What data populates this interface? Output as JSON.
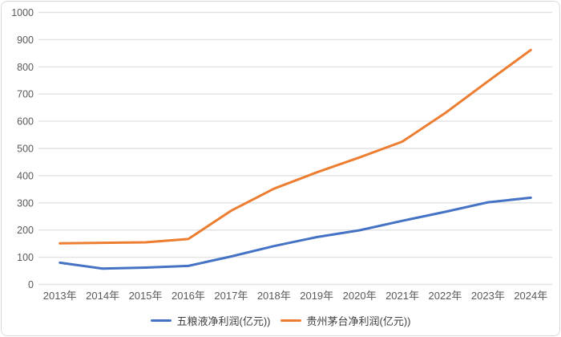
{
  "chart": {
    "frame_border_color": "#d9d9d9",
    "gridline_color": "#e2e2e2",
    "tick_label_color": "#595959",
    "legend_text_color": "#404040",
    "background": "#ffffff"
  },
  "chart_data": {
    "type": "line",
    "title": "",
    "xlabel": "",
    "ylabel": "",
    "categories": [
      "2013年",
      "2014年",
      "2015年",
      "2016年",
      "2017年",
      "2018年",
      "2019年",
      "2020年",
      "2021年",
      "2022年",
      "2023年",
      "2024年"
    ],
    "series": [
      {
        "name": "五粮液净利润(亿元))",
        "color": "#4472c4",
        "values": [
          80,
          58,
          62,
          68,
          103,
          141,
          174,
          199,
          234,
          267,
          302,
          319
        ]
      },
      {
        "name": "贵州茅台净利润(亿元))",
        "color": "#ed7d31",
        "values": [
          151,
          153,
          155,
          167,
          271,
          352,
          412,
          467,
          525,
          630,
          747,
          862
        ]
      }
    ],
    "ylim": [
      0,
      1000
    ],
    "yticks": [
      0,
      100,
      200,
      300,
      400,
      500,
      600,
      700,
      800,
      900,
      1000
    ],
    "grid": true,
    "legend_position": "bottom"
  }
}
